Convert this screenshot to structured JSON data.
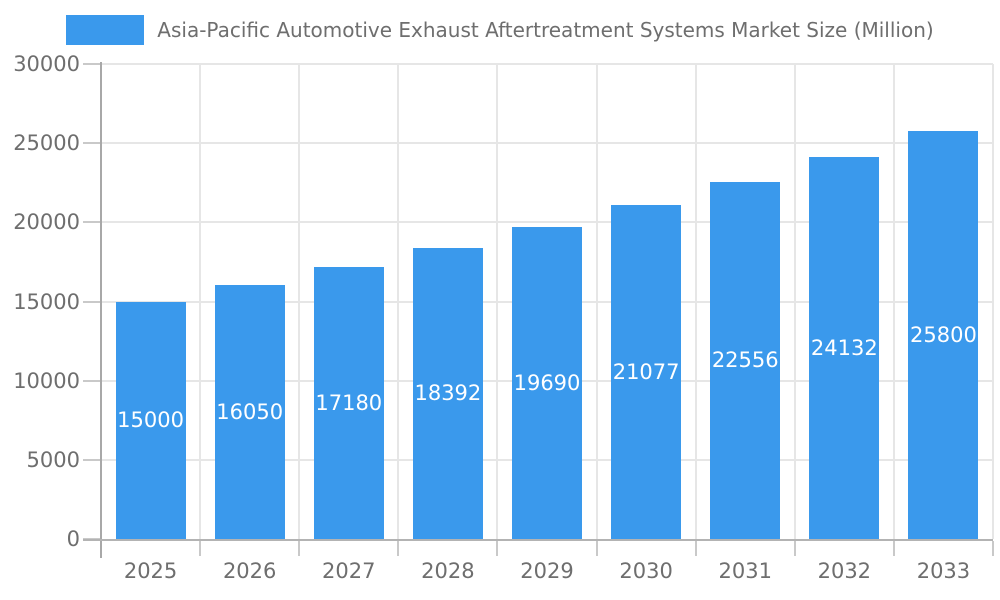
{
  "legend": {
    "label": "Asia-Pacific Automotive Exhaust Aftertreatment Systems Market Size (Million)",
    "swatch_color": "#3a99ec"
  },
  "chart_data": {
    "type": "bar",
    "title": "Asia-Pacific Automotive Exhaust Aftertreatment Systems Market Size (Million)",
    "categories": [
      "2025",
      "2026",
      "2027",
      "2028",
      "2029",
      "2030",
      "2031",
      "2032",
      "2033"
    ],
    "values": [
      15000,
      16050,
      17180,
      18392,
      19690,
      21077,
      22556,
      24132,
      25800
    ],
    "bar_labels": [
      "15000",
      "16050",
      "17180",
      "18392",
      "19690",
      "21077",
      "22556",
      "24132",
      "25800"
    ],
    "xlabel": "",
    "ylabel": "",
    "ylim": [
      0,
      30000
    ],
    "yticks": [
      0,
      5000,
      10000,
      15000,
      20000,
      25000,
      30000
    ],
    "ytick_labels": [
      "0",
      "5000",
      "10000",
      "15000",
      "20000",
      "25000",
      "30000"
    ],
    "grid": true,
    "legend_position": "top-center",
    "colors": {
      "bar": "#3a99ec",
      "value_label": "#ffffff",
      "axis_text": "#6e6e6e",
      "title_text": "#6e6e6e",
      "gridline": "#e6e6e6",
      "y_axis_line": "#a8a8a8",
      "x_axis_line": "#b3b3b3",
      "tick_mark": "#c9c9c9",
      "background": "#ffffff"
    }
  }
}
